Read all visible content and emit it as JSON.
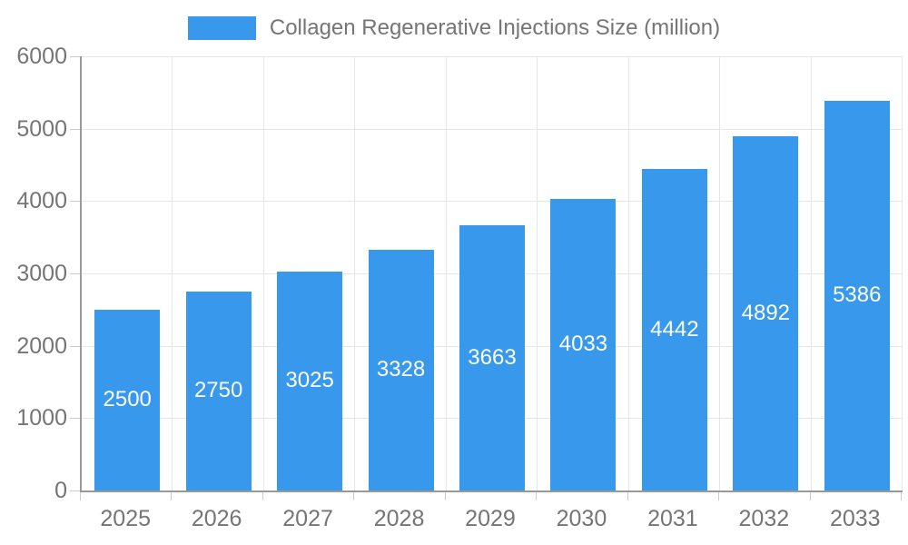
{
  "chart_data": {
    "type": "bar",
    "title": "Collagen Regenerative Injections Size (million)",
    "categories": [
      "2025",
      "2026",
      "2027",
      "2028",
      "2029",
      "2030",
      "2031",
      "2032",
      "2033"
    ],
    "values": [
      2500,
      2750,
      3025,
      3328,
      3663,
      4033,
      4442,
      4892,
      5386
    ],
    "bar_labels": [
      "2500",
      "2750",
      "3025",
      "3328",
      "3663",
      "4033",
      "4442",
      "4892",
      "5386"
    ],
    "xlabel": "",
    "ylabel": "",
    "ylim": [
      0,
      6000
    ],
    "yticks": [
      0,
      1000,
      2000,
      3000,
      4000,
      5000,
      6000
    ],
    "grid": true,
    "legend_position": "top",
    "colors": {
      "bar": "#3899EC",
      "bar_label": "#FFFFFF",
      "grid": "#E6E6E6",
      "tick": "#CCCCCC",
      "axis": "#999999",
      "text": "#757575",
      "background": "#FFFFFF"
    }
  }
}
